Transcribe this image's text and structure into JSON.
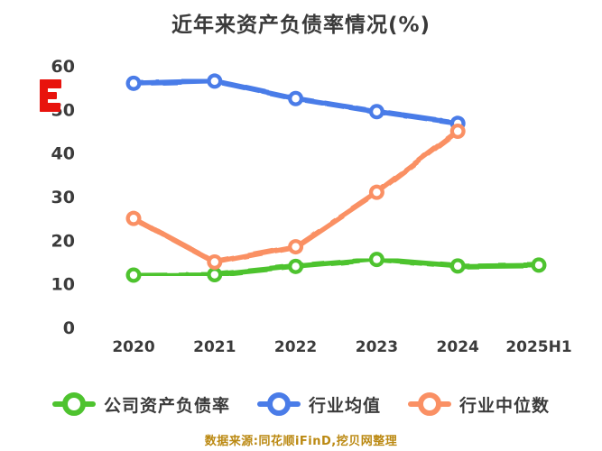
{
  "title": "近年来资产负债率情况(%)",
  "footer": {
    "text": "数据来源:同花顺iFinD,挖贝网整理",
    "color": "#bb8912"
  },
  "watermark": {
    "name": "red-logo",
    "color": "#e8130d"
  },
  "colors": {
    "axis": "#3a3a3a",
    "grid": "#cbcbcb",
    "text": "#3b3b3b",
    "marker_fill": "#ffffff"
  },
  "chart_data": {
    "type": "line",
    "title": "近年来资产负债率情况(%)",
    "categories": [
      "2020",
      "2021",
      "2022",
      "2023",
      "2024",
      "2025H1"
    ],
    "series": [
      {
        "name": "公司资产负债率",
        "color": "#4ec32f",
        "values": [
          12.0,
          12.1,
          14.0,
          15.6,
          14.1,
          14.3
        ]
      },
      {
        "name": "行业均值",
        "color": "#4a7ce8",
        "values": [
          56.0,
          56.5,
          52.5,
          49.5,
          46.8,
          null
        ]
      },
      {
        "name": "行业中位数",
        "color": "#fa9064",
        "values": [
          25.0,
          15.0,
          18.5,
          31.0,
          45.0,
          null
        ]
      }
    ],
    "xlabel": "",
    "ylabel": "",
    "ylim": [
      0,
      60
    ],
    "yticks": [
      0,
      10,
      20,
      30,
      40,
      50,
      60
    ],
    "grid": "horizontal-dashed",
    "legend_position": "bottom",
    "style": "hand-drawn"
  }
}
